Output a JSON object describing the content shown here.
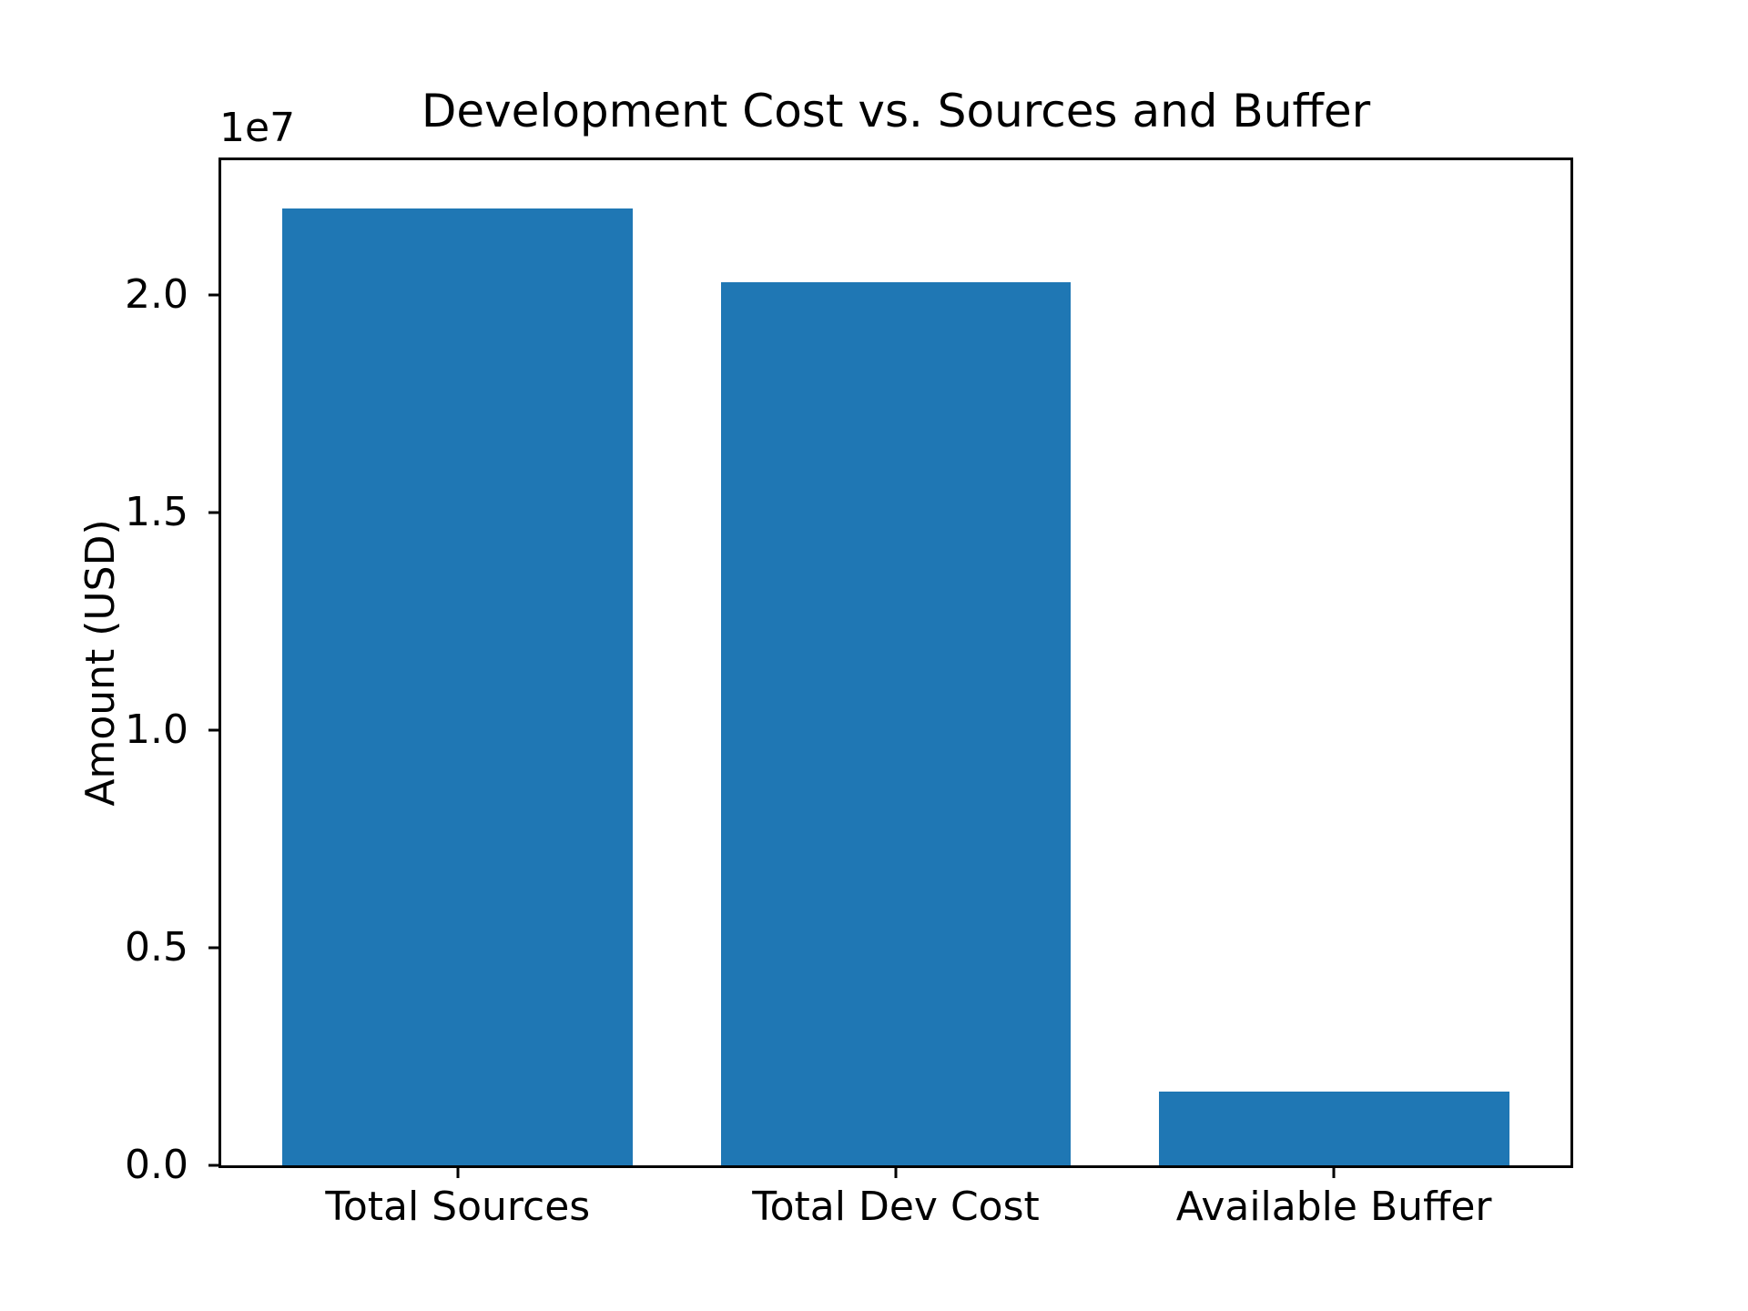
{
  "chart_data": {
    "type": "bar",
    "title": "Development Cost vs. Sources and Buffer",
    "ylabel": "Amount (USD)",
    "xlabel": "",
    "categories": [
      "Total Sources",
      "Total Dev Cost",
      "Available Buffer"
    ],
    "values": [
      22000000,
      20300000,
      1700000
    ],
    "bar_width": 0.8,
    "xlim": [
      -0.54,
      2.54
    ],
    "ylim": [
      0,
      23100000
    ],
    "yticks": [
      {
        "value": 0,
        "label": "0.0"
      },
      {
        "value": 5000000,
        "label": "0.5"
      },
      {
        "value": 10000000,
        "label": "1.0"
      },
      {
        "value": 15000000,
        "label": "1.5"
      },
      {
        "value": 20000000,
        "label": "2.0"
      }
    ],
    "y_offset_text": "1e7",
    "grid": false,
    "legend_position": "none"
  },
  "colors": {
    "background": "#ffffff",
    "axes": "#000000",
    "text": "#000000",
    "bar": "#1f77b4"
  }
}
